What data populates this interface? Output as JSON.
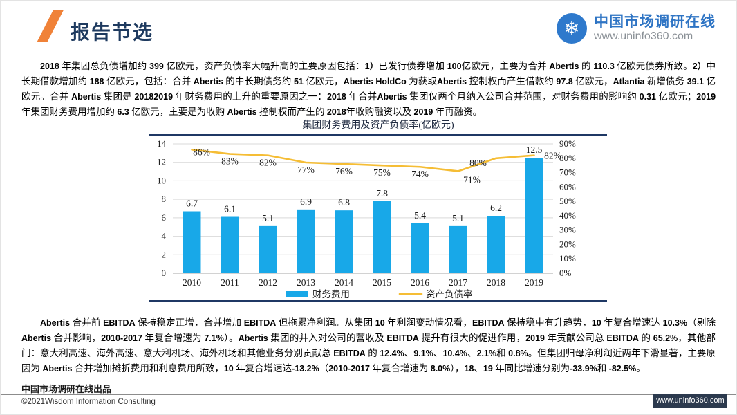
{
  "header": {
    "title": "报告节选",
    "logo": {
      "name": "中国市场调研在线",
      "url": "www.uninfo360.com",
      "snowflake_icon": "❄",
      "brand_blue": "#2E74C4",
      "slash_orange": "#F08238"
    }
  },
  "paragraphs": {
    "p1": [
      {
        "t": "2018",
        "b": 1
      },
      {
        "t": " 年集团总负债增加约 ",
        "b": 0
      },
      {
        "t": "399",
        "b": 1
      },
      {
        "t": " 亿欧元，资产负债率大幅升高的主要原因包括：",
        "b": 0
      },
      {
        "t": "1）",
        "b": 1
      },
      {
        "t": "已发行债券增加 ",
        "b": 0
      },
      {
        "t": "100",
        "b": 1
      },
      {
        "t": "亿欧元，主要为合并 ",
        "b": 0
      },
      {
        "t": "Abertis",
        "b": 1
      },
      {
        "t": " 的 ",
        "b": 0
      },
      {
        "t": "110.3",
        "b": 1
      },
      {
        "t": " 亿欧元债券所致。",
        "b": 0
      },
      {
        "t": "2）",
        "b": 1
      },
      {
        "t": "中长期借款增加约 ",
        "b": 0
      },
      {
        "t": "188",
        "b": 1
      },
      {
        "t": " 亿欧元，包括：合并 ",
        "b": 0
      },
      {
        "t": "Abertis",
        "b": 1
      },
      {
        "t": " 的中长期债务约 ",
        "b": 0
      },
      {
        "t": "51",
        "b": 1
      },
      {
        "t": " 亿欧元，",
        "b": 0
      },
      {
        "t": "Abertis HoldCo",
        "b": 1
      },
      {
        "t": " 为获取",
        "b": 0
      },
      {
        "t": "Abertis",
        "b": 1
      },
      {
        "t": " 控制权而产生借款约 ",
        "b": 0
      },
      {
        "t": "97.8",
        "b": 1
      },
      {
        "t": " 亿欧元，",
        "b": 0
      },
      {
        "t": "Atlantia",
        "b": 1
      },
      {
        "t": " 新增债务 ",
        "b": 0
      },
      {
        "t": "39.1",
        "b": 1
      },
      {
        "t": " 亿欧元。合并 ",
        "b": 0
      },
      {
        "t": "Abertis",
        "b": 1
      },
      {
        "t": " 集团是 ",
        "b": 0
      },
      {
        "t": "20182019",
        "b": 1
      },
      {
        "t": " 年财务费用的上升的重要原因之一：",
        "b": 0
      },
      {
        "t": "2018",
        "b": 1
      },
      {
        "t": " 年合并",
        "b": 0
      },
      {
        "t": "Abertis",
        "b": 1
      },
      {
        "t": " 集团仅两个月纳入公司合并范围，对财务费用的影响约 ",
        "b": 0
      },
      {
        "t": "0.31",
        "b": 1
      },
      {
        "t": " 亿欧元；",
        "b": 0
      },
      {
        "t": "2019",
        "b": 1
      },
      {
        "t": "年集团财务费用增加约 ",
        "b": 0
      },
      {
        "t": "6.3",
        "b": 1
      },
      {
        "t": " 亿欧元，主要是为收购 ",
        "b": 0
      },
      {
        "t": "Abertis",
        "b": 1
      },
      {
        "t": " 控制权而产生的 ",
        "b": 0
      },
      {
        "t": "2018",
        "b": 1
      },
      {
        "t": "年收购融资以及 ",
        "b": 0
      },
      {
        "t": "2019",
        "b": 1
      },
      {
        "t": " 年再融资。",
        "b": 0
      }
    ],
    "p2": [
      {
        "t": "Abertis",
        "b": 1
      },
      {
        "t": " 合并前 ",
        "b": 0
      },
      {
        "t": "EBITDA",
        "b": 1
      },
      {
        "t": " 保持稳定正增，合并增加 ",
        "b": 0
      },
      {
        "t": "EBITDA",
        "b": 1
      },
      {
        "t": " 但拖累净利润。从集团 ",
        "b": 0
      },
      {
        "t": "10",
        "b": 1
      },
      {
        "t": " 年利润变动情况看，",
        "b": 0
      },
      {
        "t": "EBITDA",
        "b": 1
      },
      {
        "t": " 保持稳中有升趋势，",
        "b": 0
      },
      {
        "t": "10",
        "b": 1
      },
      {
        "t": " 年复合增速达 ",
        "b": 0
      },
      {
        "t": "10.3%",
        "b": 1
      },
      {
        "t": "（剔除 ",
        "b": 0
      },
      {
        "t": "Abertis",
        "b": 1
      },
      {
        "t": " 合并影响，",
        "b": 0
      },
      {
        "t": "2010-2017",
        "b": 1
      },
      {
        "t": " 年复合增速为 ",
        "b": 0
      },
      {
        "t": "7.1%",
        "b": 1
      },
      {
        "t": "）。",
        "b": 0
      },
      {
        "t": "Abertis",
        "b": 1
      },
      {
        "t": " 集团的并入对公司的营收及 ",
        "b": 0
      },
      {
        "t": "EBITDA",
        "b": 1
      },
      {
        "t": " 提升有很大的促进作用，",
        "b": 0
      },
      {
        "t": "2019",
        "b": 1
      },
      {
        "t": " 年贡献公司总 ",
        "b": 0
      },
      {
        "t": "EBITDA",
        "b": 1
      },
      {
        "t": " 的 ",
        "b": 0
      },
      {
        "t": "65.2%",
        "b": 1
      },
      {
        "t": "，其他部门：意大利高速、海外高速、意大利机场、海外机场和其他业务分别贡献总 ",
        "b": 0
      },
      {
        "t": "EBITDA",
        "b": 1
      },
      {
        "t": " 的 ",
        "b": 0
      },
      {
        "t": "12.4%",
        "b": 1
      },
      {
        "t": "、",
        "b": 0
      },
      {
        "t": "9.1%",
        "b": 1
      },
      {
        "t": "、",
        "b": 0
      },
      {
        "t": "10.4%",
        "b": 1
      },
      {
        "t": "、",
        "b": 0
      },
      {
        "t": "2.1%",
        "b": 1
      },
      {
        "t": "和 ",
        "b": 0
      },
      {
        "t": "0.8%",
        "b": 1
      },
      {
        "t": "。但集团归母净利润近两年下滑显著，主要原因为 ",
        "b": 0
      },
      {
        "t": "Abertis",
        "b": 1
      },
      {
        "t": " 合并增加摊折费用和利息费用所致，",
        "b": 0
      },
      {
        "t": "10",
        "b": 1
      },
      {
        "t": " 年复合增速达",
        "b": 0
      },
      {
        "t": "-13.2%",
        "b": 1
      },
      {
        "t": "（",
        "b": 0
      },
      {
        "t": "2010-2017",
        "b": 1
      },
      {
        "t": " 年复合增速为 ",
        "b": 0
      },
      {
        "t": "8.0%",
        "b": 1
      },
      {
        "t": "），",
        "b": 0
      },
      {
        "t": "18",
        "b": 1
      },
      {
        "t": "、",
        "b": 0
      },
      {
        "t": "19",
        "b": 1
      },
      {
        "t": " 年同比增速分别为",
        "b": 0
      },
      {
        "t": "-33.9%",
        "b": 1
      },
      {
        "t": "和 ",
        "b": 0
      },
      {
        "t": "-82.5%",
        "b": 1
      },
      {
        "t": "。",
        "b": 0
      }
    ]
  },
  "chart_data": {
    "type": "bar",
    "title": "集团财务费用及资产负债率(亿欧元)",
    "categories": [
      "2010",
      "2011",
      "2012",
      "2013",
      "2014",
      "2015",
      "2016",
      "2017",
      "2018",
      "2019"
    ],
    "series": [
      {
        "name": "财务费用",
        "type": "bar",
        "axis": "left",
        "color": "#18A8E8",
        "values": [
          6.7,
          6.1,
          5.1,
          6.9,
          6.8,
          7.8,
          5.4,
          5.1,
          6.2,
          12.5
        ],
        "labels": [
          "6.7",
          "6.1",
          "5.1",
          "6.9",
          "6.8",
          "7.8",
          "5.4",
          "5.1",
          "6.2",
          "12.5"
        ]
      },
      {
        "name": "资产负债率",
        "type": "line",
        "axis": "right",
        "color": "#F5BD35",
        "values": [
          86,
          83,
          82,
          77,
          76,
          75,
          74,
          71,
          80,
          82
        ],
        "labels": [
          "86%",
          "83%",
          "82%",
          "77%",
          "76%",
          "75%",
          "74%",
          "71%",
          "80%",
          "82%"
        ]
      }
    ],
    "left_axis": {
      "min": 0,
      "max": 14,
      "step": 2
    },
    "right_axis": {
      "min": 0,
      "max": 90,
      "step": 10,
      "suffix": "%"
    },
    "grid": true,
    "legend_position": "bottom",
    "frame_color": "#1F3864",
    "grid_color": "#D9D9D9",
    "baseline_color": "#A6A6A6"
  },
  "footer": {
    "brand_line": "中国市场调研在线出品",
    "copyright": "©2021Wisdom Information Consulting",
    "badge": "www.uninfo360.com",
    "badge_color": "#2C3A4E"
  }
}
